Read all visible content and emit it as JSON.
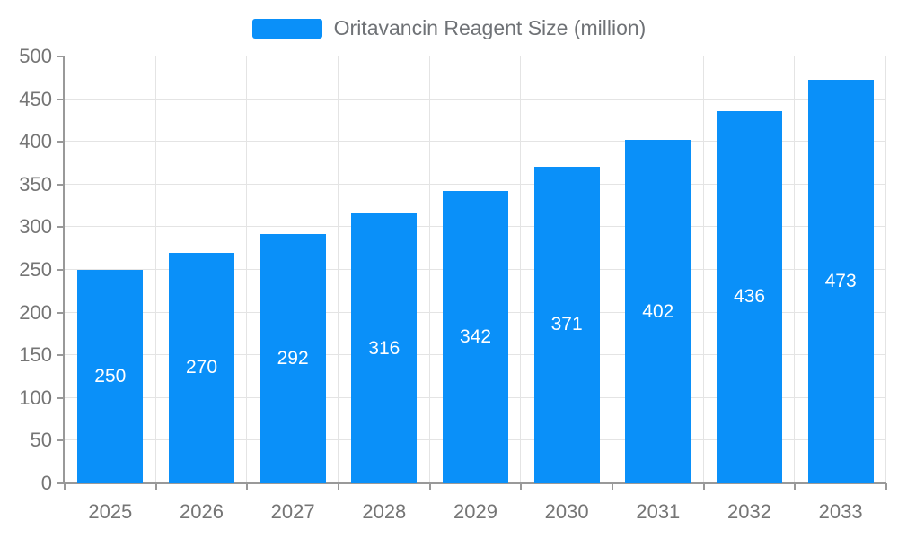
{
  "chart_data": {
    "type": "bar",
    "title": "Oritavancin Reagent Size (million)",
    "categories": [
      "2025",
      "2026",
      "2027",
      "2028",
      "2029",
      "2030",
      "2031",
      "2032",
      "2033"
    ],
    "values": [
      250,
      270,
      292,
      316,
      342,
      371,
      402,
      436,
      473
    ],
    "series": [
      {
        "name": "Oritavancin Reagent Size (million)",
        "values": [
          250,
          270,
          292,
          316,
          342,
          371,
          402,
          436,
          473
        ]
      }
    ],
    "xlabel": "",
    "ylabel": "",
    "ylim": [
      0,
      500
    ],
    "ytick_step": 50,
    "yticks": [
      0,
      50,
      100,
      150,
      200,
      250,
      300,
      350,
      400,
      450,
      500
    ],
    "grid": "horizontal-and-vertical",
    "legend_position": "top-center",
    "value_labels": "inside-center-white"
  },
  "colors": {
    "bar": "#0a90f9",
    "grid": "#e4e4e4",
    "axis": "#999999",
    "tick_label": "#757575",
    "legend_text": "#6f7276",
    "value_label": "#ffffff",
    "background": "#ffffff"
  }
}
